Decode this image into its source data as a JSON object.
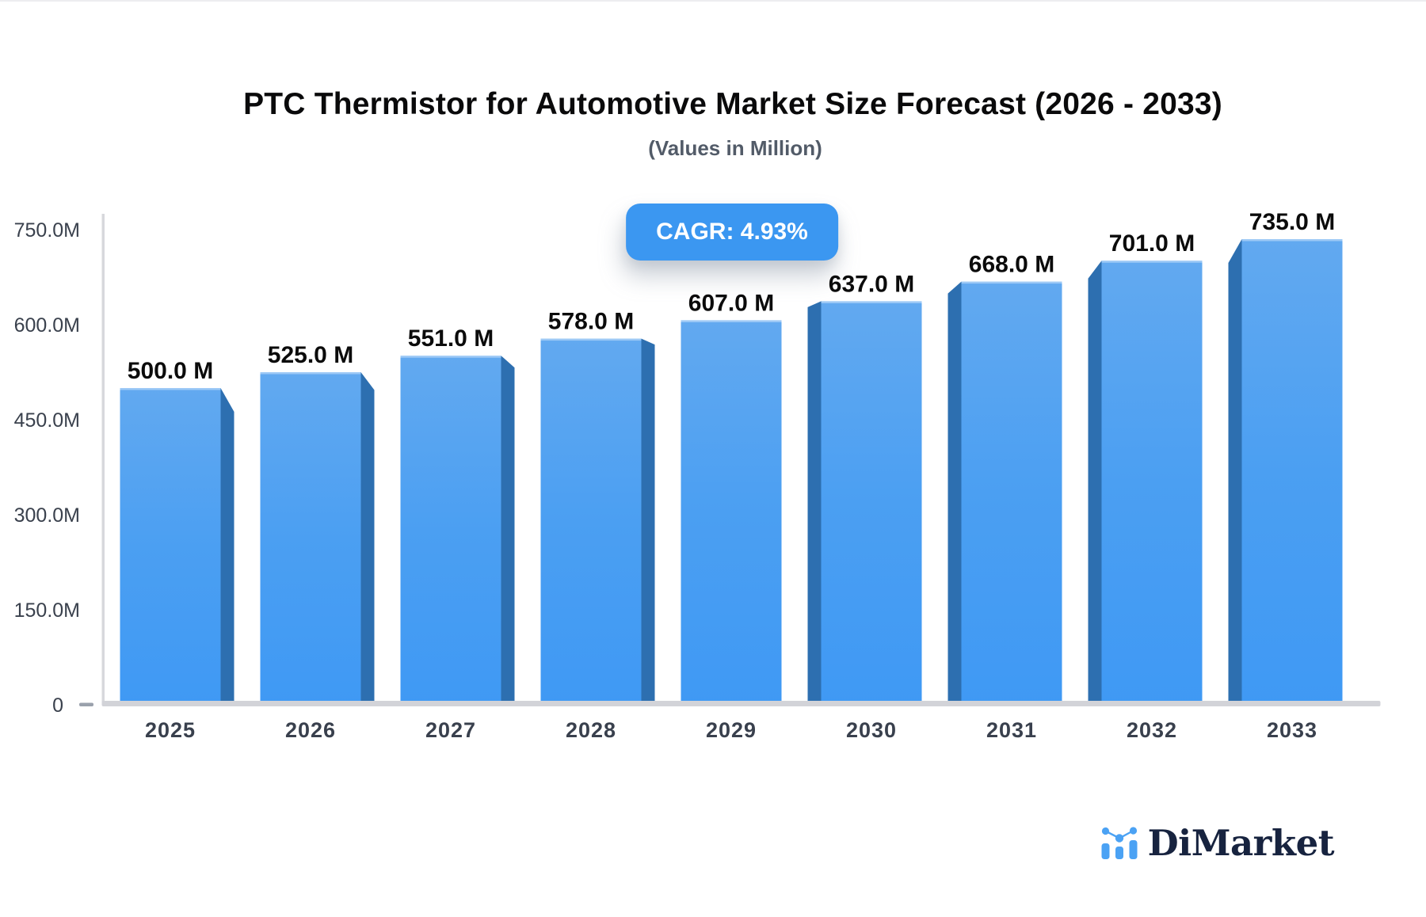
{
  "header": {
    "title": "PTC Thermistor for Automotive Market Size Forecast (2026 - 2033)",
    "subtitle": "(Values in Million)"
  },
  "badge": {
    "label": "CAGR: 4.93%",
    "bg_color": "#3b97f1",
    "text_color": "#ffffff"
  },
  "logo": {
    "name": "DiMarket",
    "icon": "mini-bar-chart-logo-icon",
    "icon_color": "#4ba2f4",
    "text_color": "#17233f"
  },
  "chart_data": {
    "type": "bar",
    "title": "PTC Thermistor for Automotive Market Size Forecast (2026 - 2033)",
    "subtitle": "(Values in Million)",
    "cagr_label": "CAGR: 4.93%",
    "categories": [
      "2025",
      "2026",
      "2027",
      "2028",
      "2029",
      "2030",
      "2031",
      "2032",
      "2033"
    ],
    "values": [
      500.0,
      525.0,
      551.0,
      578.0,
      607.0,
      637.0,
      668.0,
      701.0,
      735.0
    ],
    "value_labels": [
      "500.0 M",
      "525.0 M",
      "551.0 M",
      "578.0 M",
      "607.0 M",
      "637.0 M",
      "668.0 M",
      "701.0 M",
      "735.0 M"
    ],
    "unit": "Million",
    "ylim": [
      0,
      750
    ],
    "yticks": [
      0,
      150,
      300,
      450,
      600,
      750
    ],
    "ytick_labels": [
      "0",
      "150.0M",
      "300.0M",
      "450.0M",
      "600.0M",
      "750.0M"
    ],
    "zero_tick_dash": "–",
    "grid": false,
    "legend": "none",
    "style_3d": "center-vanishing pseudo-3d sides",
    "colors": {
      "bar_face_top": "#62a9f0",
      "bar_face_mid": "#4b9ff2",
      "bar_face_bottom": "#3f99f4",
      "bar_side": "#2d6fb0",
      "axis_line": "#d7d8dc",
      "baseline": "#d2d3d8",
      "ytick_label": "#3a414d",
      "xtick_label": "#39404d",
      "value_label": "#0b0b0b",
      "zero_dash": "#9aa1ac"
    }
  }
}
